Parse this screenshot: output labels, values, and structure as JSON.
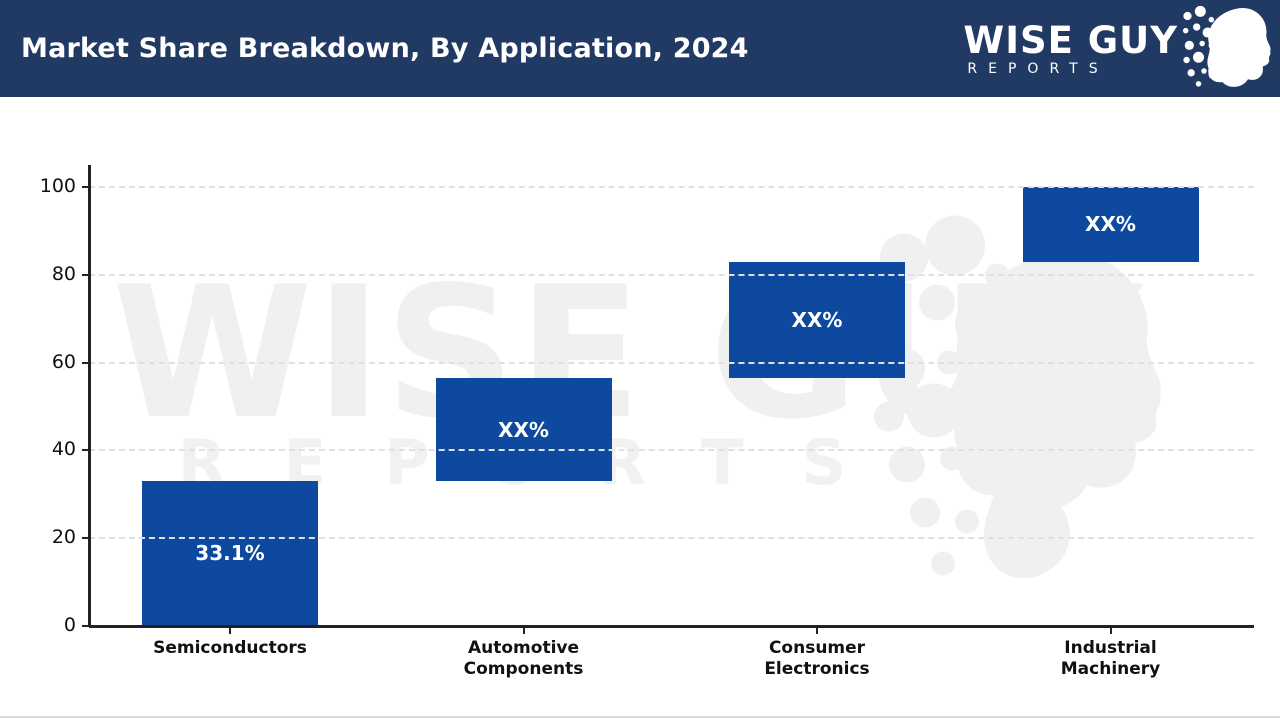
{
  "header": {
    "title": "Market Share Breakdown, By Application, 2024",
    "logo": {
      "wordmark": "WISE GUY",
      "subtext": "REPORTS"
    }
  },
  "watermark": {
    "wordmark": "WISE GUY",
    "subtext": "REPORTS"
  },
  "colors": {
    "header_bg": "#213a64",
    "bar_blue": "#0d4a9f",
    "title_text": "#ffffff",
    "watermark_gray": "#f0f0f0",
    "gridline_gray": "#e0e0e0",
    "axis_black": "#222222"
  },
  "chart_data": {
    "type": "bar",
    "subtype": "waterfall",
    "title": "Market Share Breakdown, By Application, 2024",
    "categories": [
      "Semiconductors",
      "Automotive\nComponents",
      "Consumer\nElectronics",
      "Industrial\nMachinery"
    ],
    "segments": [
      {
        "category": "Semiconductors",
        "start": 0,
        "end": 33.1,
        "label": "33.1%"
      },
      {
        "category": "Automotive Components",
        "start": 33.1,
        "end": 56.4,
        "label": "XX%"
      },
      {
        "category": "Consumer Electronics",
        "start": 56.4,
        "end": 83.0,
        "label": "XX%"
      },
      {
        "category": "Industrial Machinery",
        "start": 83.0,
        "end": 100.0,
        "label": "XX%"
      }
    ],
    "xlabel": "",
    "ylabel": "",
    "ylim": [
      0,
      100
    ],
    "yticks": [
      0,
      20,
      40,
      60,
      80,
      100
    ],
    "grid": "horizontal dashed, drawn over bars",
    "legend": "none",
    "bar_color": "#0d4a9f"
  }
}
